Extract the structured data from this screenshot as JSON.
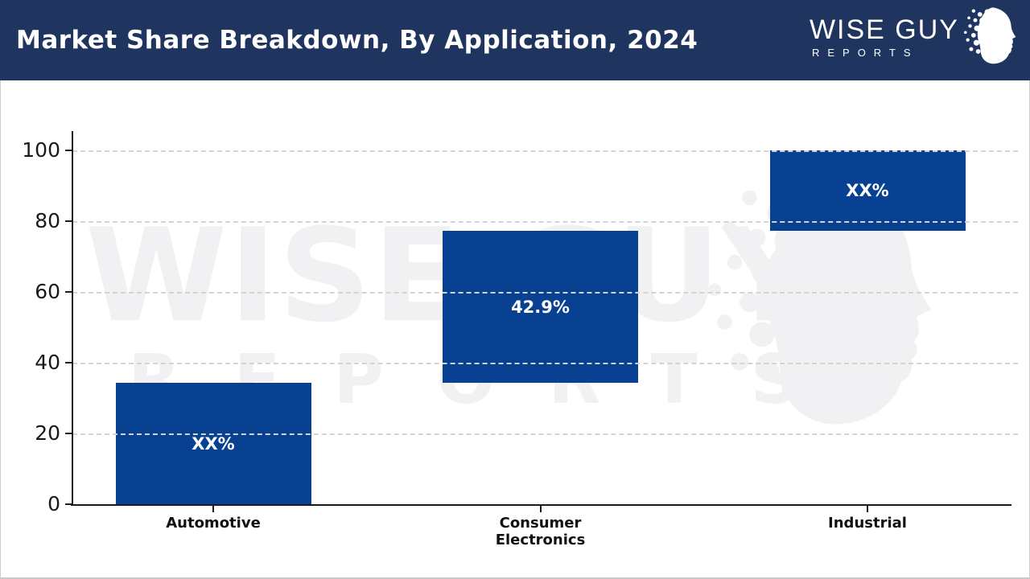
{
  "header": {
    "title": "Market Share Breakdown, By Application, 2024",
    "logo": {
      "line1": "WISE GUY",
      "line2": "REPORTS"
    }
  },
  "watermark": {
    "line1": "WISE GUY",
    "line2": "REPORTS"
  },
  "chart_data": {
    "type": "bar",
    "subtype": "waterfall-stacked-breakdown",
    "title": "Market Share Breakdown, By Application, 2024",
    "categories": [
      "Automotive",
      "Consumer Electronics",
      "Industrial"
    ],
    "segments": [
      {
        "category": "Automotive",
        "start": 0,
        "end": 34.3,
        "label": "XX%"
      },
      {
        "category": "Consumer Electronics",
        "start": 34.3,
        "end": 77.2,
        "label": "42.9%"
      },
      {
        "category": "Industrial",
        "start": 77.2,
        "end": 100,
        "label": "XX%"
      }
    ],
    "yticks": [
      0,
      20,
      40,
      60,
      80,
      100
    ],
    "ylim": [
      0,
      105
    ],
    "xlabel": "",
    "ylabel": "",
    "grid": "horizontal-dashed",
    "legend": "none",
    "colors": {
      "bar": "#084192",
      "bar_label": "#ffffff",
      "axis": "#1a1a1a",
      "gridline": "#d4d4d4",
      "header_bg": "#1f355f",
      "watermark": "#f1f1f4"
    }
  }
}
